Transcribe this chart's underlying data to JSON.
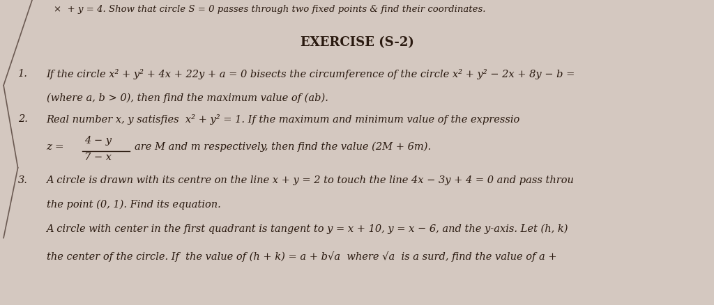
{
  "bg_color": "#d4c8c0",
  "title_text": "EXERCISE (S-2)",
  "title_fontsize": 13,
  "header_text": "×  + y = 4. Show that circle S = 0 passes through two fixed points & find their coordinates.",
  "font_color": "#2a1a10",
  "font_size": 10.5,
  "header_font_size": 9.5,
  "line1_num": "1.",
  "line1_text": "If the circle x² + y² + 4x + 22y + a = 0 bisects the circumference of the circle x² + y² − 2x + 8y − b =",
  "line2_text": "(where a, b > 0), then find the maximum value of (ab).",
  "line3_num": "2.",
  "line3_text": "Real number x, y satisfies  x² + y² = 1. If the maximum and minimum value of the expressio",
  "line4_num": "4 − y",
  "line4_den": "7 − x",
  "line4_tail": "are M and m respectively, then find the value (2M + 6m).",
  "line5_num": "3.",
  "line5_text": "A circle is drawn with its centre on the line x + y = 2 to touch the line 4x − 3y + 4 = 0 and pass throu",
  "line6_text": "the point (0, 1). Find its equation.",
  "line7_text": "A circle with center in the first quadrant is tangent to y = x + 10, y = x − 6, and the y-axis. Let (h, k)",
  "line8_text": "the center of the circle. If  the value of (h + k) = a + b√a  where √a  is a surd, find the value of a +"
}
